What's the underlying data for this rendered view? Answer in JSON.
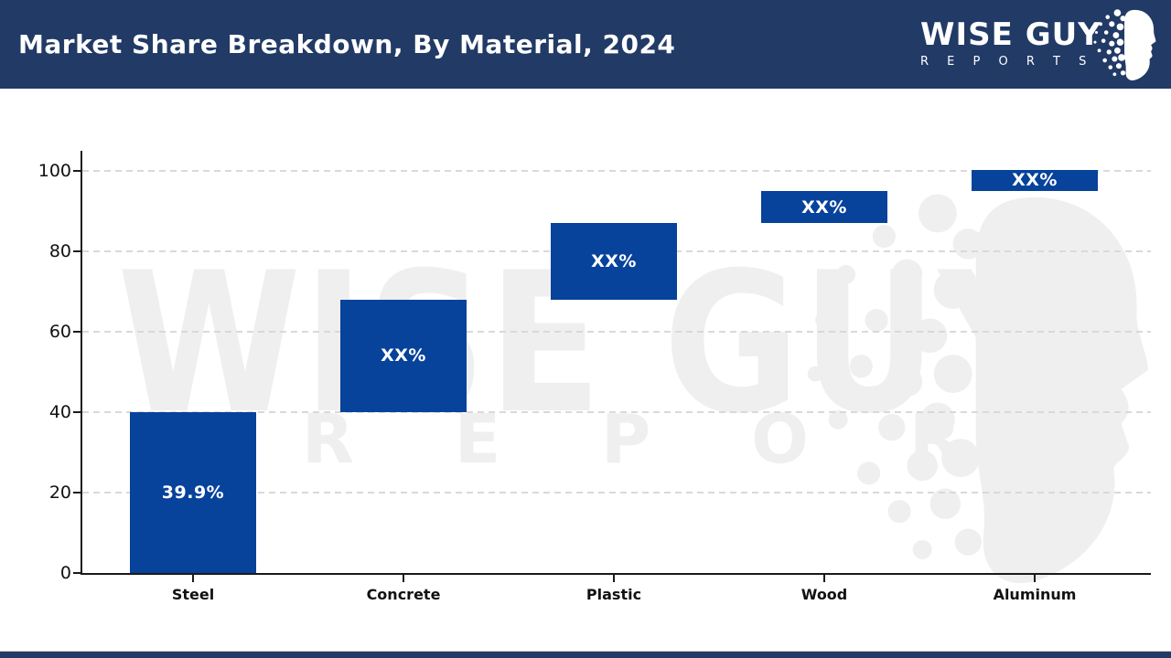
{
  "header": {
    "title": "Market Share Breakdown, By Material, 2024",
    "logo": {
      "line1": "WISE GUY",
      "line2": "R E P O R T S"
    }
  },
  "watermark": {
    "line1": "WISE GUY",
    "line2": "R E P O R T S"
  },
  "colors": {
    "navy_header": "#213a66",
    "bar_blue": "#07429b",
    "grid_gray": "#d9d9d9",
    "watermark_gray": "#f0eff0",
    "bar_label_white": "#ffffff"
  },
  "chart_data": {
    "type": "bar",
    "subtype": "waterfall",
    "title": "Market Share Breakdown, By Material, 2024",
    "categories": [
      "Steel",
      "Concrete",
      "Plastic",
      "Wood",
      "Aluminum"
    ],
    "segments": [
      {
        "category": "Steel",
        "from": 0,
        "to": 39.9,
        "value_label": "39.9%"
      },
      {
        "category": "Concrete",
        "from": 40,
        "to": 68,
        "value_label": "XX%"
      },
      {
        "category": "Plastic",
        "from": 68,
        "to": 87,
        "value_label": "XX%"
      },
      {
        "category": "Wood",
        "from": 87,
        "to": 95,
        "value_label": "XX%"
      },
      {
        "category": "Aluminum",
        "from": 95,
        "to": 100.3,
        "value_label": "XX%"
      }
    ],
    "yticks": [
      0,
      20,
      40,
      60,
      80,
      100
    ],
    "ylim": [
      0,
      105
    ],
    "xlabel": "",
    "ylabel": "",
    "grid": "horizontal dashed",
    "legend": "none"
  }
}
